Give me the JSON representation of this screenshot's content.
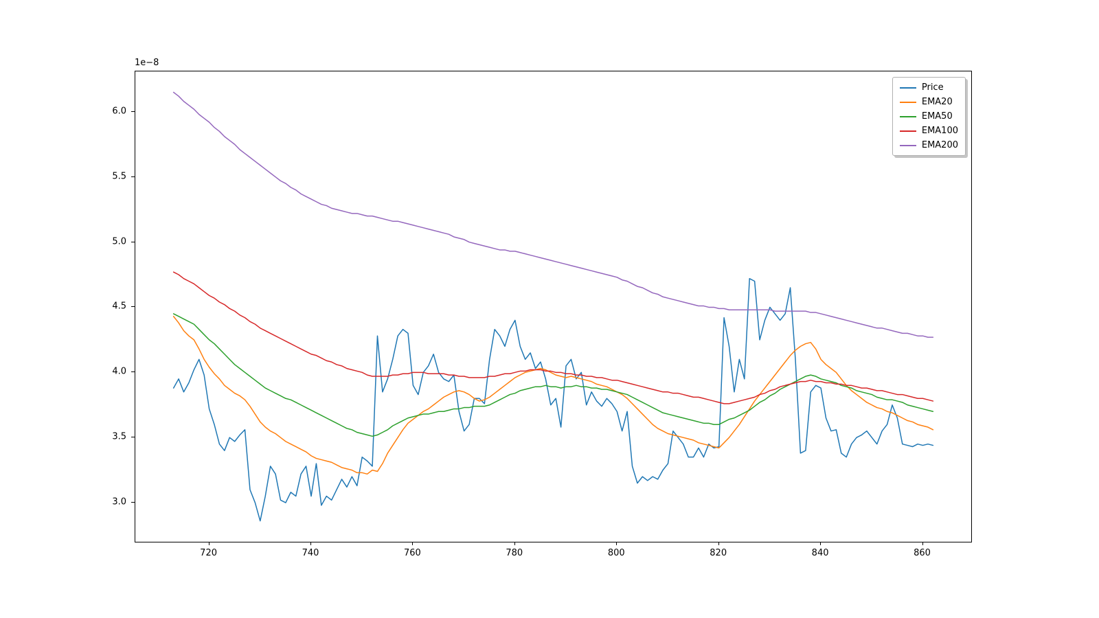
{
  "chart_data": {
    "type": "line",
    "title": "",
    "xlabel": "",
    "ylabel": "",
    "y_offset_label": "1e−8",
    "grid": false,
    "legend_position": "upper right",
    "xlim": [
      705.5,
      869.5
    ],
    "ylim": [
      2.7,
      6.31
    ],
    "x_ticks": [
      720,
      740,
      760,
      780,
      800,
      820,
      840,
      860
    ],
    "y_ticks": [
      3.0,
      3.5,
      4.0,
      4.5,
      5.0,
      5.5,
      6.0
    ],
    "x": [
      713,
      714,
      715,
      716,
      717,
      718,
      719,
      720,
      721,
      722,
      723,
      724,
      725,
      726,
      727,
      728,
      729,
      730,
      731,
      732,
      733,
      734,
      735,
      736,
      737,
      738,
      739,
      740,
      741,
      742,
      743,
      744,
      745,
      746,
      747,
      748,
      749,
      750,
      751,
      752,
      753,
      754,
      755,
      756,
      757,
      758,
      759,
      760,
      761,
      762,
      763,
      764,
      765,
      766,
      767,
      768,
      769,
      770,
      771,
      772,
      773,
      774,
      775,
      776,
      777,
      778,
      779,
      780,
      781,
      782,
      783,
      784,
      785,
      786,
      787,
      788,
      789,
      790,
      791,
      792,
      793,
      794,
      795,
      796,
      797,
      798,
      799,
      800,
      801,
      802,
      803,
      804,
      805,
      806,
      807,
      808,
      809,
      810,
      811,
      812,
      813,
      814,
      815,
      816,
      817,
      818,
      819,
      820,
      821,
      822,
      823,
      824,
      825,
      826,
      827,
      828,
      829,
      830,
      831,
      832,
      833,
      834,
      835,
      836,
      837,
      838,
      839,
      840,
      841,
      842,
      843,
      844,
      845,
      846,
      847,
      848,
      849,
      850,
      851,
      852,
      853,
      854,
      855,
      856,
      857,
      858,
      859,
      860,
      861,
      862
    ],
    "series": [
      {
        "name": "Price",
        "color": "#1f77b4",
        "values": [
          3.88,
          3.95,
          3.85,
          3.92,
          4.02,
          4.1,
          3.98,
          3.72,
          3.6,
          3.45,
          3.4,
          3.5,
          3.47,
          3.52,
          3.56,
          3.1,
          3.0,
          2.86,
          3.05,
          3.28,
          3.22,
          3.02,
          3.0,
          3.08,
          3.05,
          3.22,
          3.28,
          3.05,
          3.3,
          2.98,
          3.05,
          3.02,
          3.1,
          3.18,
          3.12,
          3.2,
          3.13,
          3.35,
          3.32,
          3.28,
          4.28,
          3.85,
          3.95,
          4.1,
          4.28,
          4.33,
          4.3,
          3.9,
          3.83,
          4.0,
          4.05,
          4.14,
          4.0,
          3.95,
          3.93,
          3.98,
          3.7,
          3.55,
          3.6,
          3.8,
          3.8,
          3.76,
          4.1,
          4.33,
          4.28,
          4.2,
          4.33,
          4.4,
          4.2,
          4.1,
          4.15,
          4.03,
          4.08,
          3.95,
          3.75,
          3.8,
          3.58,
          4.05,
          4.1,
          3.95,
          4.0,
          3.75,
          3.85,
          3.78,
          3.74,
          3.8,
          3.76,
          3.7,
          3.55,
          3.7,
          3.28,
          3.15,
          3.2,
          3.17,
          3.2,
          3.18,
          3.25,
          3.3,
          3.55,
          3.5,
          3.45,
          3.35,
          3.35,
          3.42,
          3.35,
          3.45,
          3.42,
          3.43,
          4.42,
          4.2,
          3.85,
          4.1,
          3.95,
          4.72,
          4.7,
          4.25,
          4.4,
          4.5,
          4.45,
          4.4,
          4.45,
          4.65,
          4.1,
          3.38,
          3.4,
          3.85,
          3.9,
          3.88,
          3.65,
          3.55,
          3.56,
          3.38,
          3.35,
          3.45,
          3.5,
          3.52,
          3.55,
          3.5,
          3.45,
          3.55,
          3.6,
          3.75,
          3.65,
          3.45,
          3.44,
          3.43,
          3.45,
          3.44,
          3.45,
          3.44
        ]
      },
      {
        "name": "EMA20",
        "color": "#ff7f0e",
        "values": [
          4.43,
          4.38,
          4.32,
          4.28,
          4.25,
          4.18,
          4.1,
          4.04,
          3.99,
          3.95,
          3.9,
          3.87,
          3.84,
          3.82,
          3.79,
          3.74,
          3.68,
          3.62,
          3.58,
          3.55,
          3.53,
          3.5,
          3.47,
          3.45,
          3.43,
          3.41,
          3.39,
          3.36,
          3.34,
          3.33,
          3.32,
          3.31,
          3.29,
          3.27,
          3.26,
          3.25,
          3.23,
          3.23,
          3.22,
          3.25,
          3.24,
          3.3,
          3.38,
          3.44,
          3.5,
          3.56,
          3.61,
          3.64,
          3.67,
          3.7,
          3.72,
          3.75,
          3.78,
          3.81,
          3.83,
          3.85,
          3.86,
          3.85,
          3.83,
          3.8,
          3.78,
          3.79,
          3.81,
          3.84,
          3.87,
          3.9,
          3.93,
          3.96,
          3.98,
          4.0,
          4.01,
          4.02,
          4.03,
          4.02,
          4.0,
          3.98,
          3.97,
          3.96,
          3.97,
          3.96,
          3.95,
          3.94,
          3.93,
          3.91,
          3.9,
          3.89,
          3.87,
          3.85,
          3.83,
          3.8,
          3.76,
          3.72,
          3.68,
          3.64,
          3.6,
          3.57,
          3.55,
          3.53,
          3.52,
          3.51,
          3.5,
          3.49,
          3.48,
          3.46,
          3.45,
          3.44,
          3.43,
          3.42,
          3.46,
          3.5,
          3.55,
          3.6,
          3.66,
          3.72,
          3.78,
          3.83,
          3.88,
          3.93,
          3.98,
          4.03,
          4.08,
          4.13,
          4.17,
          4.2,
          4.22,
          4.23,
          4.18,
          4.1,
          4.06,
          4.03,
          4.0,
          3.95,
          3.9,
          3.86,
          3.83,
          3.8,
          3.77,
          3.75,
          3.73,
          3.72,
          3.7,
          3.69,
          3.67,
          3.65,
          3.63,
          3.62,
          3.6,
          3.59,
          3.58,
          3.56
        ]
      },
      {
        "name": "EMA50",
        "color": "#2ca02c",
        "values": [
          4.45,
          4.43,
          4.41,
          4.39,
          4.37,
          4.33,
          4.29,
          4.25,
          4.22,
          4.18,
          4.14,
          4.1,
          4.06,
          4.03,
          4.0,
          3.97,
          3.94,
          3.91,
          3.88,
          3.86,
          3.84,
          3.82,
          3.8,
          3.79,
          3.77,
          3.75,
          3.73,
          3.71,
          3.69,
          3.67,
          3.65,
          3.63,
          3.61,
          3.59,
          3.57,
          3.56,
          3.54,
          3.53,
          3.52,
          3.51,
          3.52,
          3.54,
          3.56,
          3.59,
          3.61,
          3.63,
          3.65,
          3.66,
          3.67,
          3.68,
          3.68,
          3.69,
          3.7,
          3.7,
          3.71,
          3.72,
          3.72,
          3.73,
          3.73,
          3.74,
          3.74,
          3.74,
          3.75,
          3.77,
          3.79,
          3.81,
          3.83,
          3.84,
          3.86,
          3.87,
          3.88,
          3.89,
          3.89,
          3.9,
          3.89,
          3.89,
          3.88,
          3.89,
          3.89,
          3.9,
          3.89,
          3.89,
          3.88,
          3.88,
          3.87,
          3.87,
          3.86,
          3.85,
          3.84,
          3.83,
          3.81,
          3.79,
          3.77,
          3.75,
          3.73,
          3.71,
          3.69,
          3.68,
          3.67,
          3.66,
          3.65,
          3.64,
          3.63,
          3.62,
          3.61,
          3.61,
          3.6,
          3.6,
          3.62,
          3.64,
          3.65,
          3.67,
          3.69,
          3.71,
          3.74,
          3.77,
          3.79,
          3.82,
          3.84,
          3.87,
          3.89,
          3.91,
          3.93,
          3.95,
          3.97,
          3.98,
          3.97,
          3.95,
          3.94,
          3.93,
          3.92,
          3.9,
          3.89,
          3.88,
          3.86,
          3.85,
          3.84,
          3.83,
          3.81,
          3.8,
          3.79,
          3.79,
          3.78,
          3.77,
          3.75,
          3.74,
          3.73,
          3.72,
          3.71,
          3.7
        ]
      },
      {
        "name": "EMA100",
        "color": "#d62728",
        "values": [
          4.77,
          4.75,
          4.72,
          4.7,
          4.68,
          4.65,
          4.62,
          4.59,
          4.57,
          4.54,
          4.52,
          4.49,
          4.47,
          4.44,
          4.42,
          4.39,
          4.37,
          4.34,
          4.32,
          4.3,
          4.28,
          4.26,
          4.24,
          4.22,
          4.2,
          4.18,
          4.16,
          4.14,
          4.13,
          4.11,
          4.09,
          4.08,
          4.06,
          4.05,
          4.03,
          4.02,
          4.01,
          4.0,
          3.98,
          3.97,
          3.97,
          3.97,
          3.97,
          3.98,
          3.98,
          3.99,
          3.99,
          4.0,
          4.0,
          4.0,
          3.99,
          3.99,
          3.99,
          3.99,
          3.98,
          3.98,
          3.97,
          3.97,
          3.96,
          3.96,
          3.96,
          3.96,
          3.97,
          3.97,
          3.98,
          3.99,
          3.99,
          4.0,
          4.01,
          4.01,
          4.02,
          4.02,
          4.02,
          4.01,
          4.01,
          4.0,
          4.0,
          3.99,
          3.99,
          3.98,
          3.98,
          3.97,
          3.97,
          3.96,
          3.96,
          3.95,
          3.94,
          3.94,
          3.93,
          3.92,
          3.91,
          3.9,
          3.89,
          3.88,
          3.87,
          3.86,
          3.85,
          3.85,
          3.84,
          3.84,
          3.83,
          3.82,
          3.81,
          3.81,
          3.8,
          3.79,
          3.78,
          3.77,
          3.76,
          3.76,
          3.77,
          3.78,
          3.79,
          3.8,
          3.81,
          3.83,
          3.84,
          3.86,
          3.87,
          3.89,
          3.9,
          3.91,
          3.92,
          3.93,
          3.93,
          3.94,
          3.93,
          3.93,
          3.92,
          3.92,
          3.91,
          3.91,
          3.9,
          3.9,
          3.89,
          3.88,
          3.88,
          3.87,
          3.86,
          3.86,
          3.85,
          3.84,
          3.83,
          3.83,
          3.82,
          3.81,
          3.8,
          3.8,
          3.79,
          3.78
        ]
      },
      {
        "name": "EMA200",
        "color": "#9467bd",
        "values": [
          6.15,
          6.12,
          6.08,
          6.05,
          6.02,
          5.98,
          5.95,
          5.92,
          5.88,
          5.85,
          5.81,
          5.78,
          5.75,
          5.71,
          5.68,
          5.65,
          5.62,
          5.59,
          5.56,
          5.53,
          5.5,
          5.47,
          5.45,
          5.42,
          5.4,
          5.37,
          5.35,
          5.33,
          5.31,
          5.29,
          5.28,
          5.26,
          5.25,
          5.24,
          5.23,
          5.22,
          5.22,
          5.21,
          5.2,
          5.2,
          5.19,
          5.18,
          5.17,
          5.16,
          5.16,
          5.15,
          5.14,
          5.13,
          5.12,
          5.11,
          5.1,
          5.09,
          5.08,
          5.07,
          5.06,
          5.04,
          5.03,
          5.02,
          5.0,
          4.99,
          4.98,
          4.97,
          4.96,
          4.95,
          4.94,
          4.94,
          4.93,
          4.93,
          4.92,
          4.91,
          4.9,
          4.89,
          4.88,
          4.87,
          4.86,
          4.85,
          4.84,
          4.83,
          4.82,
          4.81,
          4.8,
          4.79,
          4.78,
          4.77,
          4.76,
          4.75,
          4.74,
          4.73,
          4.71,
          4.7,
          4.68,
          4.66,
          4.65,
          4.63,
          4.61,
          4.6,
          4.58,
          4.57,
          4.56,
          4.55,
          4.54,
          4.53,
          4.52,
          4.51,
          4.51,
          4.5,
          4.5,
          4.49,
          4.49,
          4.48,
          4.48,
          4.48,
          4.48,
          4.48,
          4.48,
          4.48,
          4.48,
          4.48,
          4.47,
          4.47,
          4.47,
          4.47,
          4.47,
          4.47,
          4.47,
          4.46,
          4.46,
          4.45,
          4.44,
          4.43,
          4.42,
          4.41,
          4.4,
          4.39,
          4.38,
          4.37,
          4.36,
          4.35,
          4.34,
          4.34,
          4.33,
          4.32,
          4.31,
          4.3,
          4.3,
          4.29,
          4.28,
          4.28,
          4.27,
          4.27
        ]
      }
    ]
  }
}
